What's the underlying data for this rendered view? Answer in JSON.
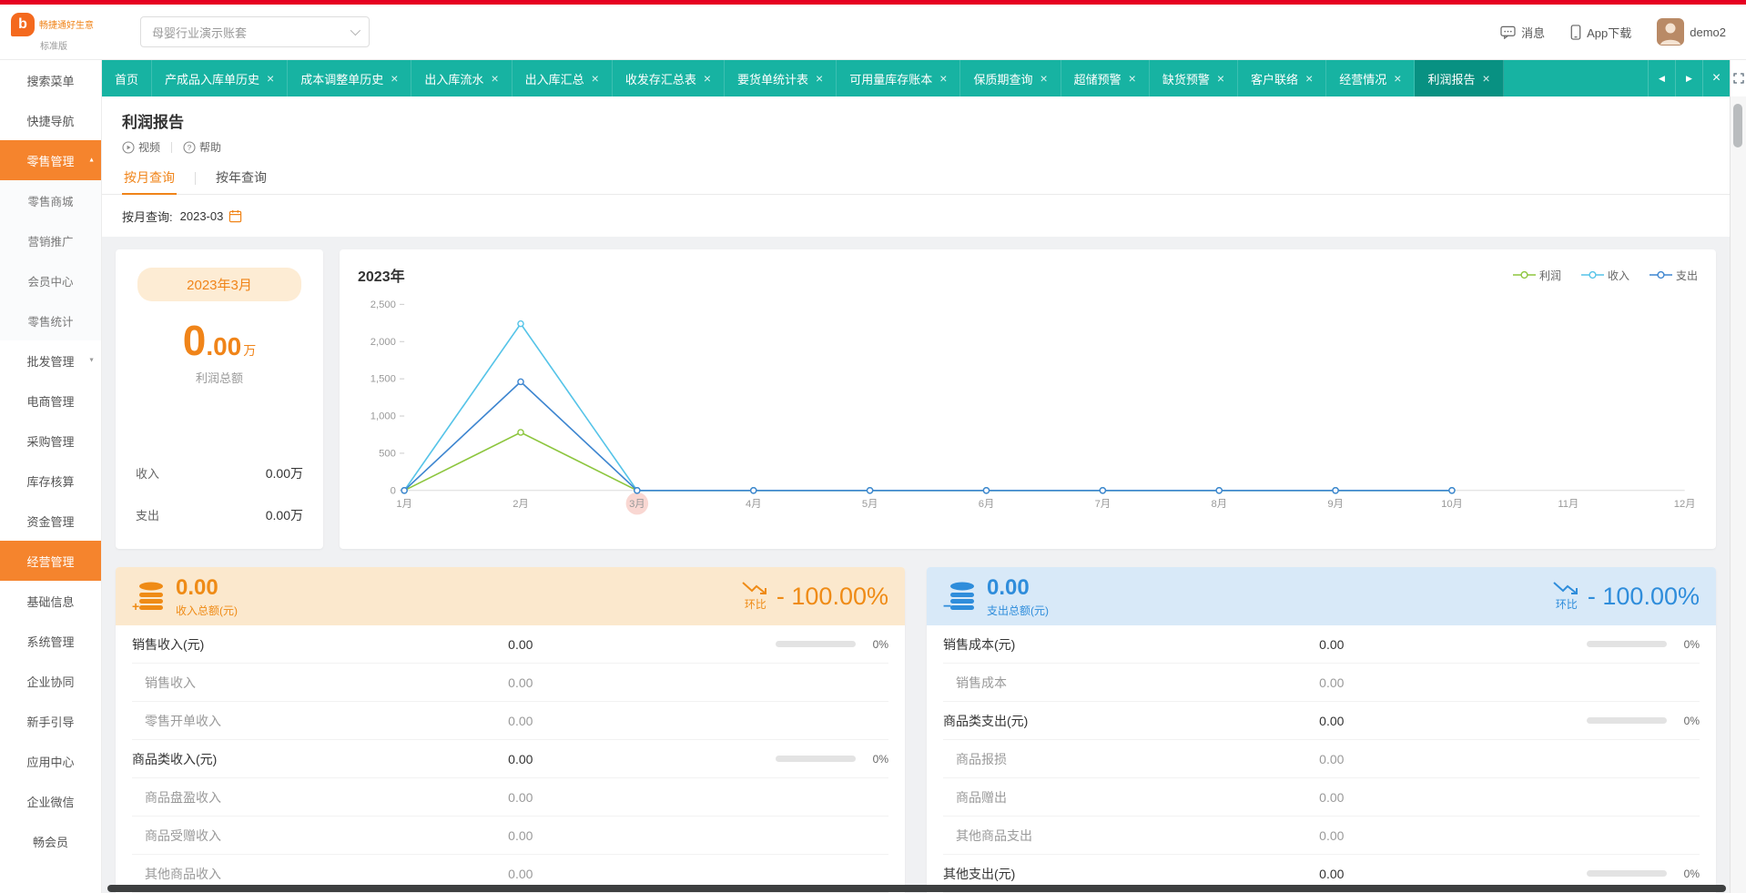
{
  "colors": {
    "accent_orange": "#f08419",
    "accent_blue": "#2f8ddb",
    "teal": "#17b3a2",
    "teal_active": "#089182",
    "top_strip_red": "#e60021"
  },
  "header": {
    "logo_title": "畅捷通好生意",
    "logo_sub": "标准版",
    "account_select": "母婴行业演示账套",
    "messages_label": "消息",
    "app_download_label": "App下载",
    "username": "demo2"
  },
  "tab_bar": {
    "tabs": [
      {
        "label": "首页",
        "closable": false,
        "active": false
      },
      {
        "label": "产成品入库单历史",
        "closable": true,
        "active": false
      },
      {
        "label": "成本调整单历史",
        "closable": true,
        "active": false
      },
      {
        "label": "出入库流水",
        "closable": true,
        "active": false
      },
      {
        "label": "出入库汇总",
        "closable": true,
        "active": false
      },
      {
        "label": "收发存汇总表",
        "closable": true,
        "active": false
      },
      {
        "label": "要货单统计表",
        "closable": true,
        "active": false
      },
      {
        "label": "可用量库存账本",
        "closable": true,
        "active": false
      },
      {
        "label": "保质期查询",
        "closable": true,
        "active": false
      },
      {
        "label": "超储预警",
        "closable": true,
        "active": false
      },
      {
        "label": "缺货预警",
        "closable": true,
        "active": false
      },
      {
        "label": "客户联络",
        "closable": true,
        "active": false
      },
      {
        "label": "经营情况",
        "closable": true,
        "active": false
      },
      {
        "label": "利润报告",
        "closable": true,
        "active": true
      }
    ]
  },
  "sidebar": {
    "items": [
      {
        "label": "搜索菜单",
        "type": "top",
        "active": false
      },
      {
        "label": "快捷导航",
        "type": "top",
        "active": false
      },
      {
        "label": "零售管理",
        "type": "group",
        "active": true,
        "caret": "up"
      },
      {
        "label": "零售商城",
        "type": "sub",
        "active": false
      },
      {
        "label": "营销推广",
        "type": "sub",
        "active": false
      },
      {
        "label": "会员中心",
        "type": "sub",
        "active": false
      },
      {
        "label": "零售统计",
        "type": "sub",
        "active": false
      },
      {
        "label": "批发管理",
        "type": "group",
        "active": false,
        "caret": "down"
      },
      {
        "label": "电商管理",
        "type": "top",
        "active": false
      },
      {
        "label": "采购管理",
        "type": "top",
        "active": false
      },
      {
        "label": "库存核算",
        "type": "top",
        "active": false
      },
      {
        "label": "资金管理",
        "type": "top",
        "active": false
      },
      {
        "label": "经营管理",
        "type": "top",
        "active": true
      },
      {
        "label": "基础信息",
        "type": "top",
        "active": false
      },
      {
        "label": "系统管理",
        "type": "top",
        "active": false
      },
      {
        "label": "企业协同",
        "type": "top",
        "active": false
      },
      {
        "label": "新手引导",
        "type": "top",
        "active": false
      },
      {
        "label": "应用中心",
        "type": "top",
        "active": false
      },
      {
        "label": "企业微信",
        "type": "top",
        "active": false
      },
      {
        "label": "畅会员",
        "type": "top",
        "active": false
      }
    ]
  },
  "page": {
    "title": "利润报告",
    "video_label": "视频",
    "help_label": "帮助",
    "query_tabs": [
      {
        "label": "按月查询",
        "active": true
      },
      {
        "label": "按年查询",
        "active": false
      }
    ],
    "filter_label": "按月查询:",
    "filter_value": "2023-03"
  },
  "summary_card": {
    "period": "2023年3月",
    "total_int": "0",
    "total_dec": ".00",
    "total_unit": "万",
    "total_label": "利润总额",
    "rows": [
      {
        "label": "收入",
        "value": "0.00万"
      },
      {
        "label": "支出",
        "value": "0.00万"
      }
    ]
  },
  "chart_data": {
    "type": "line",
    "title": "2023年",
    "x": [
      "1月",
      "2月",
      "3月",
      "4月",
      "5月",
      "6月",
      "7月",
      "8月",
      "9月",
      "10月",
      "11月",
      "12月"
    ],
    "yticks": [
      0,
      500,
      1000,
      1500,
      2000,
      2500
    ],
    "ylim": [
      0,
      2500
    ],
    "highlight_month": "3月",
    "legend_position": "top-right",
    "series": [
      {
        "name": "利润",
        "color": "#8dc63f",
        "values": [
          0,
          780,
          0,
          0,
          0,
          0,
          0,
          0,
          0,
          0,
          null,
          null
        ]
      },
      {
        "name": "收入",
        "color": "#56c4e8",
        "values": [
          0,
          2240,
          0,
          0,
          0,
          0,
          0,
          0,
          0,
          0,
          null,
          null
        ]
      },
      {
        "name": "支出",
        "color": "#3e86d0",
        "values": [
          0,
          1460,
          0,
          0,
          0,
          0,
          0,
          0,
          0,
          0,
          null,
          null
        ]
      }
    ]
  },
  "income_card": {
    "total": "0.00",
    "total_label": "收入总额(元)",
    "ratio_label": "环比",
    "ratio_value": "- 100.00%",
    "rows": [
      {
        "label": "销售收入(元)",
        "value": "0.00",
        "pct": "0%"
      },
      {
        "label": "销售收入",
        "value": "0.00"
      },
      {
        "label": "零售开单收入",
        "value": "0.00"
      },
      {
        "label": "商品类收入(元)",
        "value": "0.00",
        "pct": "0%"
      },
      {
        "label": "商品盘盈收入",
        "value": "0.00"
      },
      {
        "label": "商品受赠收入",
        "value": "0.00"
      },
      {
        "label": "其他商品收入",
        "value": "0.00"
      }
    ]
  },
  "expense_card": {
    "total": "0.00",
    "total_label": "支出总额(元)",
    "ratio_label": "环比",
    "ratio_value": "- 100.00%",
    "rows": [
      {
        "label": "销售成本(元)",
        "value": "0.00",
        "pct": "0%"
      },
      {
        "label": "销售成本",
        "value": "0.00"
      },
      {
        "label": "商品类支出(元)",
        "value": "0.00",
        "pct": "0%"
      },
      {
        "label": "商品报损",
        "value": "0.00"
      },
      {
        "label": "商品赠出",
        "value": "0.00"
      },
      {
        "label": "其他商品支出",
        "value": "0.00"
      },
      {
        "label": "其他支出(元)",
        "value": "0.00",
        "pct": "0%"
      }
    ]
  }
}
